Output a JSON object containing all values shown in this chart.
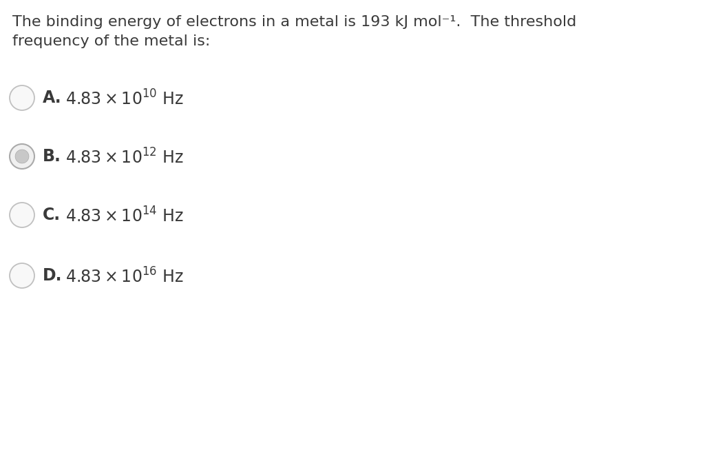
{
  "title_line1": "The binding energy of electrons in a metal is 193 kJ mol⁻¹.  The threshold",
  "title_line2": "frequency of the metal is:",
  "options": [
    {
      "label": "A.",
      "mathtext": "$4.83 \\times 10^{10}$ Hz",
      "selected": false
    },
    {
      "label": "B.",
      "mathtext": "$4.83 \\times 10^{12}$ Hz",
      "selected": true
    },
    {
      "label": "C.",
      "mathtext": "$4.83 \\times 10^{14}$ Hz",
      "selected": false
    },
    {
      "label": "D.",
      "mathtext": "$4.83 \\times 10^{16}$ Hz",
      "selected": false
    }
  ],
  "bg_color": "#ffffff",
  "text_color": "#3a3a3a",
  "font_size_title": 16,
  "font_size_options": 17,
  "circle_edge_color": "#c0c0c0",
  "circle_edge_selected": "#aaaaaa",
  "circle_fill_selected": "#c8c8c8"
}
